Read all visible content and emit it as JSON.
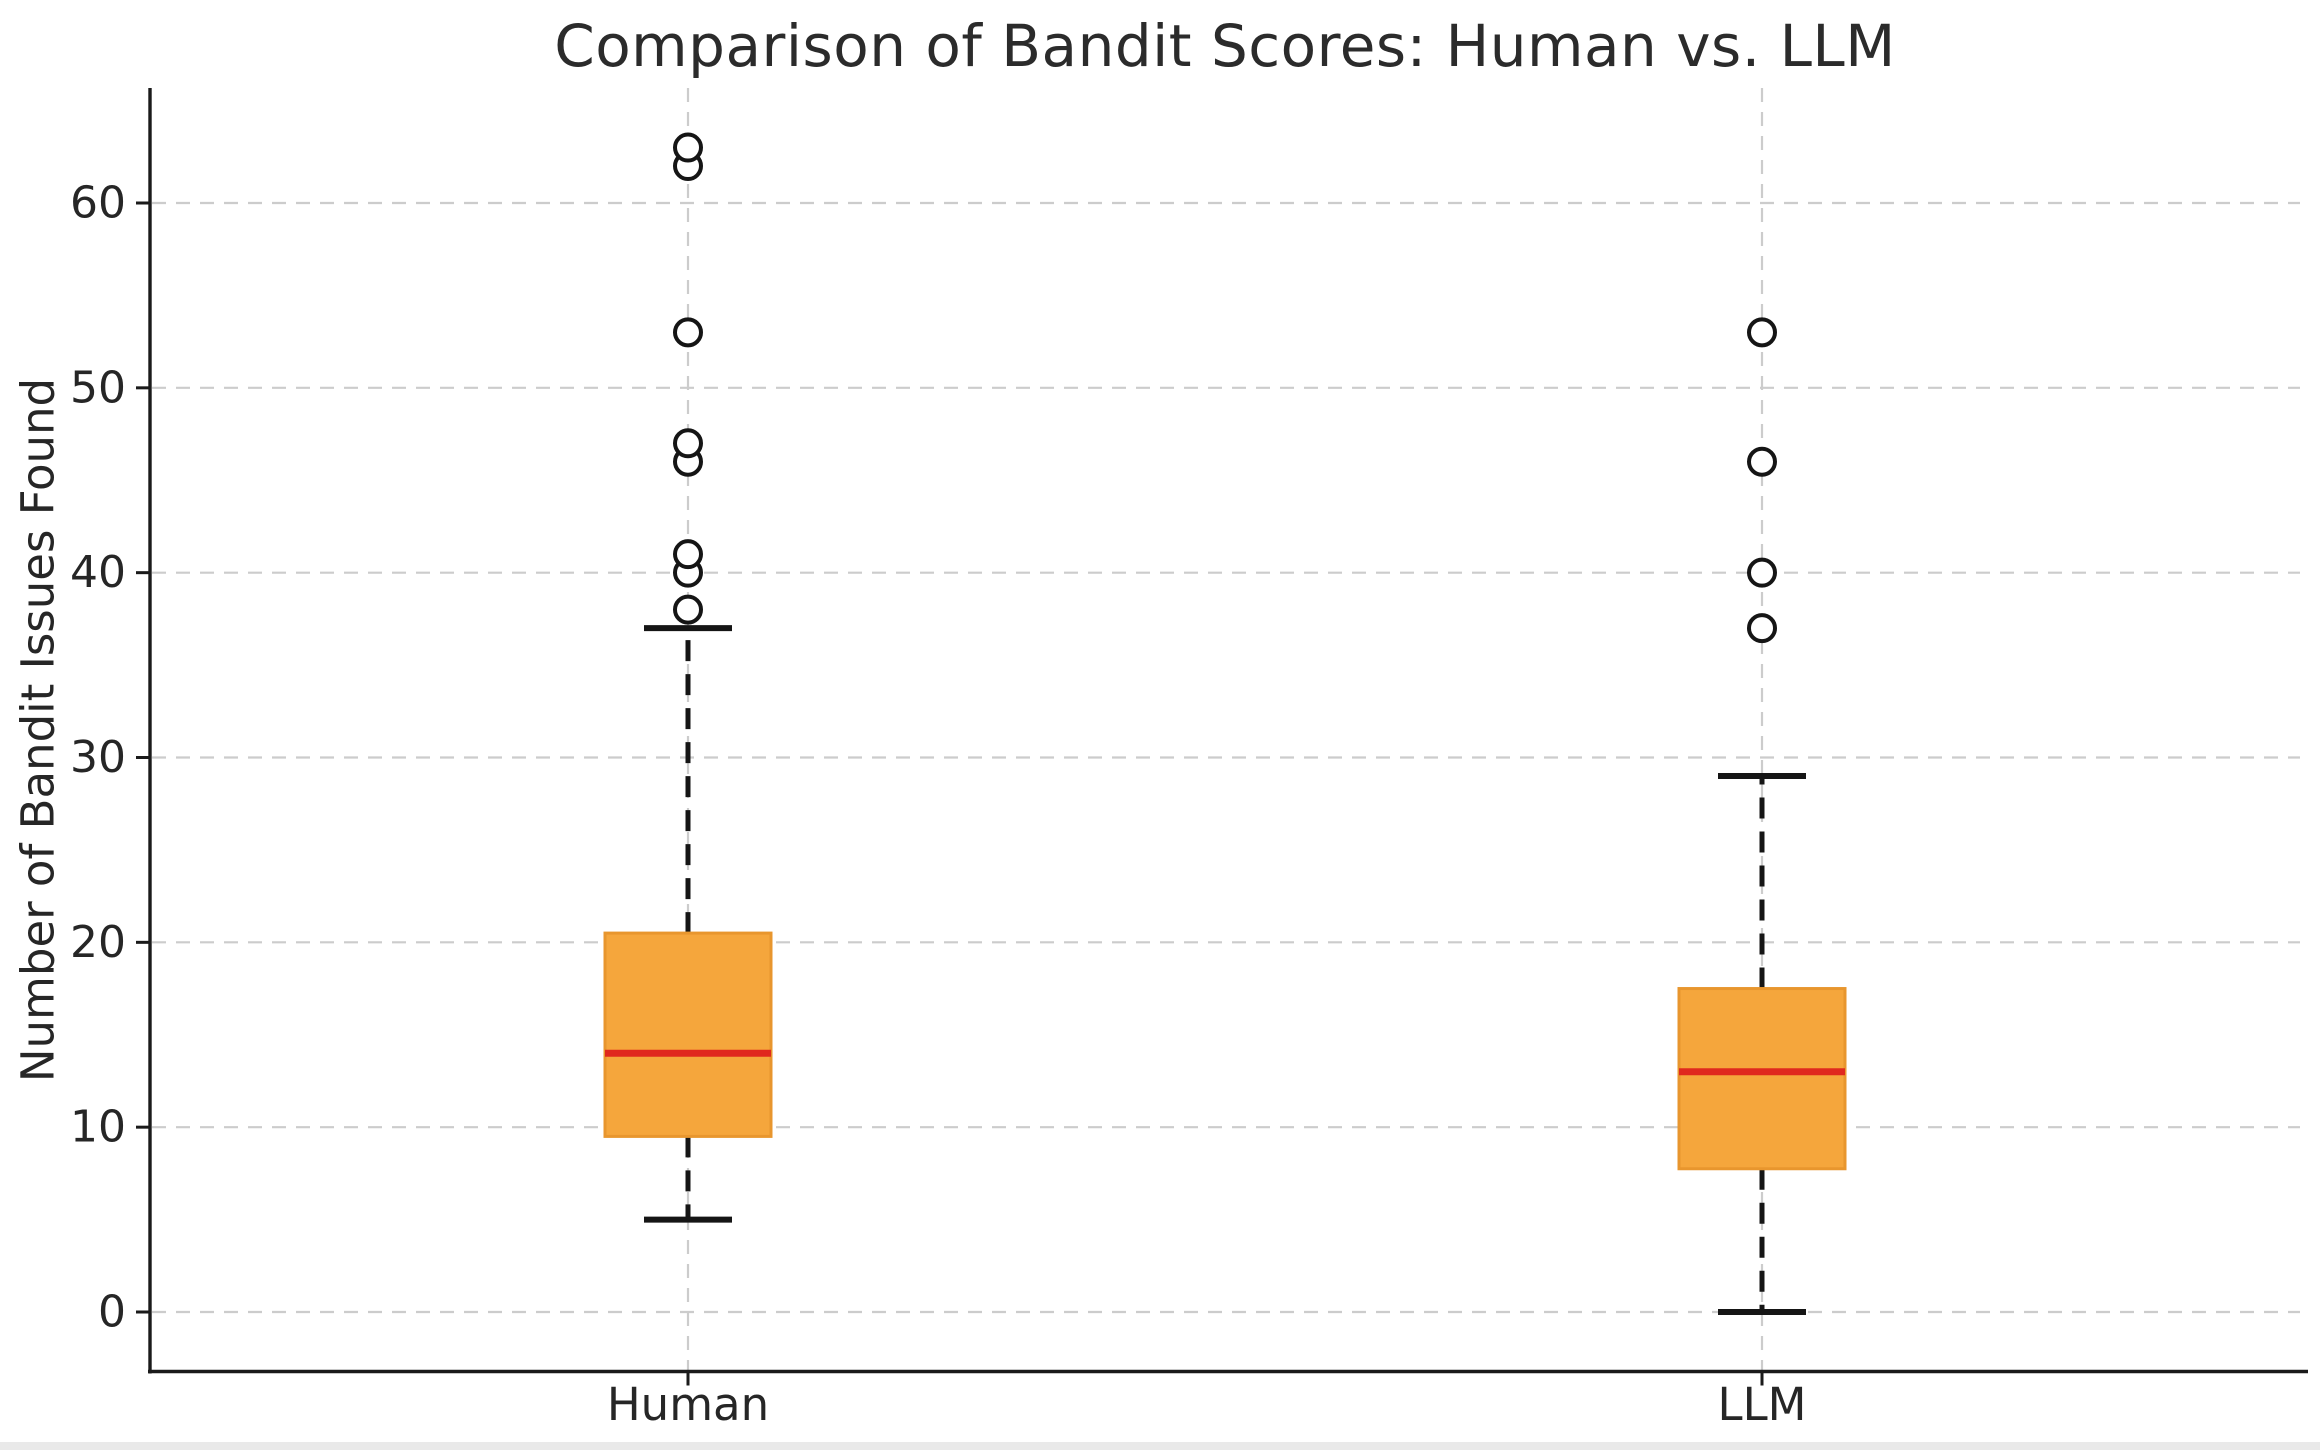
{
  "page": {
    "background": "#ffffff",
    "bottom_strip_color": "#e9e9e9"
  },
  "chart_data": {
    "type": "boxplot",
    "title": "Comparison of Bandit Scores: Human vs. LLM",
    "xlabel": "",
    "ylabel": "Number of Bandit Issues Found",
    "categories": [
      "Human",
      "LLM"
    ],
    "yticks": [
      0,
      10,
      20,
      30,
      40,
      50,
      60
    ],
    "ylim": [
      -3.3,
      66.2
    ],
    "grid": {
      "horizontal": true,
      "vertical": true,
      "style": "dashed",
      "color": "#cccccc"
    },
    "legend": "none",
    "series": [
      {
        "name": "Human",
        "whisker_low": 5,
        "q1": 9.5,
        "median": 14,
        "q3": 20.5,
        "whisker_high": 37,
        "outliers": [
          38,
          40,
          41,
          46,
          47,
          53,
          62,
          63
        ]
      },
      {
        "name": "LLM",
        "whisker_low": 0,
        "q1": 7.75,
        "median": 13,
        "q3": 17.5,
        "whisker_high": 29,
        "outliers": [
          37,
          40,
          46,
          53
        ]
      }
    ],
    "colors": {
      "box_fill": "#F5A63C",
      "box_edge": "#E8962E",
      "median": "#E0281E",
      "whisker": "#151515",
      "cap": "#151515",
      "outlier_stroke": "#151515",
      "outlier_fill": "#ffffff",
      "grid": "#cccccc",
      "spine": "#1a1a1a",
      "text": "#262626"
    }
  }
}
